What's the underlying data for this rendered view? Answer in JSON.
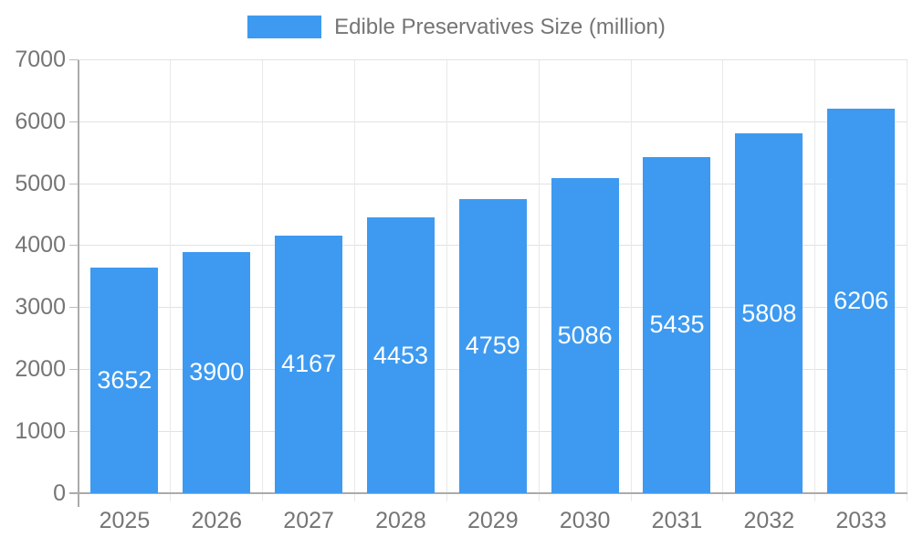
{
  "chart_data": {
    "type": "bar",
    "title": "Edible Preservatives Size (million)",
    "categories": [
      "2025",
      "2026",
      "2027",
      "2028",
      "2029",
      "2030",
      "2031",
      "2032",
      "2033"
    ],
    "values": [
      3652,
      3900,
      4167,
      4453,
      4759,
      5086,
      5435,
      5808,
      6206
    ],
    "xlabel": "",
    "ylabel": "",
    "ylim": [
      0,
      7000
    ],
    "ytick_step": 1000,
    "ytick_labels": [
      "0",
      "1000",
      "2000",
      "3000",
      "4000",
      "5000",
      "6000",
      "7000"
    ],
    "grid": true,
    "legend_position": "top",
    "colors": {
      "bar": "#3D9AF0",
      "value_label": "#FFFFFF",
      "axis_text": "#757575",
      "legend_text": "#757575",
      "hgrid": "#E2E2E2",
      "vgrid": "#E9E9E9",
      "axis_line": "#ABABAB",
      "tick": "#BDBDBD",
      "background": "#FFFFFF"
    }
  }
}
